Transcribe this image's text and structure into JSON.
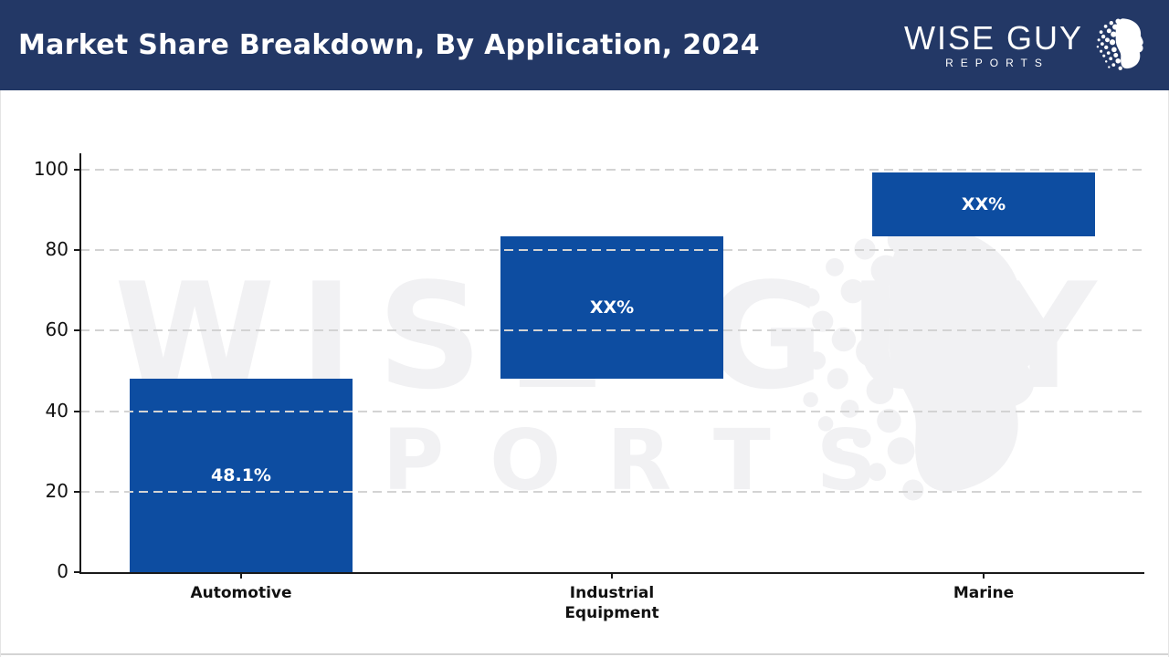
{
  "header": {
    "title": "Market Share Breakdown, By Application, 2024",
    "logo_line1": "WISE GUY",
    "logo_line2": "REPORTS"
  },
  "watermark": {
    "line1": "WISE GUY",
    "line2": "REPORTS"
  },
  "chart_data": {
    "type": "bar",
    "subtype": "waterfall-stacked-segments",
    "title": "Market Share Breakdown, By Application, 2024",
    "xlabel": "",
    "ylabel": "",
    "ylim": [
      0,
      100
    ],
    "yticks": [
      0,
      20,
      40,
      60,
      80,
      100
    ],
    "grid": "horizontal-dashed",
    "legend": "none",
    "categories": [
      "Automotive",
      "Industrial Equipment",
      "Marine"
    ],
    "series": [
      {
        "category": "Automotive",
        "label_lines": [
          "Automotive"
        ],
        "start": 0,
        "end": 48.1,
        "value": 48.1,
        "bar_label": "48.1%"
      },
      {
        "category": "Industrial Equipment",
        "label_lines": [
          "Industrial",
          "Equipment"
        ],
        "start": 48.1,
        "end": 83.4,
        "value": 35.3,
        "bar_label": "XX%"
      },
      {
        "category": "Marine",
        "label_lines": [
          "Marine"
        ],
        "start": 83.4,
        "end": 99.4,
        "value": 16.0,
        "bar_label": "XX%"
      }
    ]
  },
  "colors": {
    "header_bg": "#233866",
    "bar": "#0d4da1",
    "axis": "#1a1a1a",
    "grid": "#d3d3d3",
    "bar_label": "#ffffff",
    "tick_label": "#111111",
    "watermark": "#f1f1f3"
  }
}
